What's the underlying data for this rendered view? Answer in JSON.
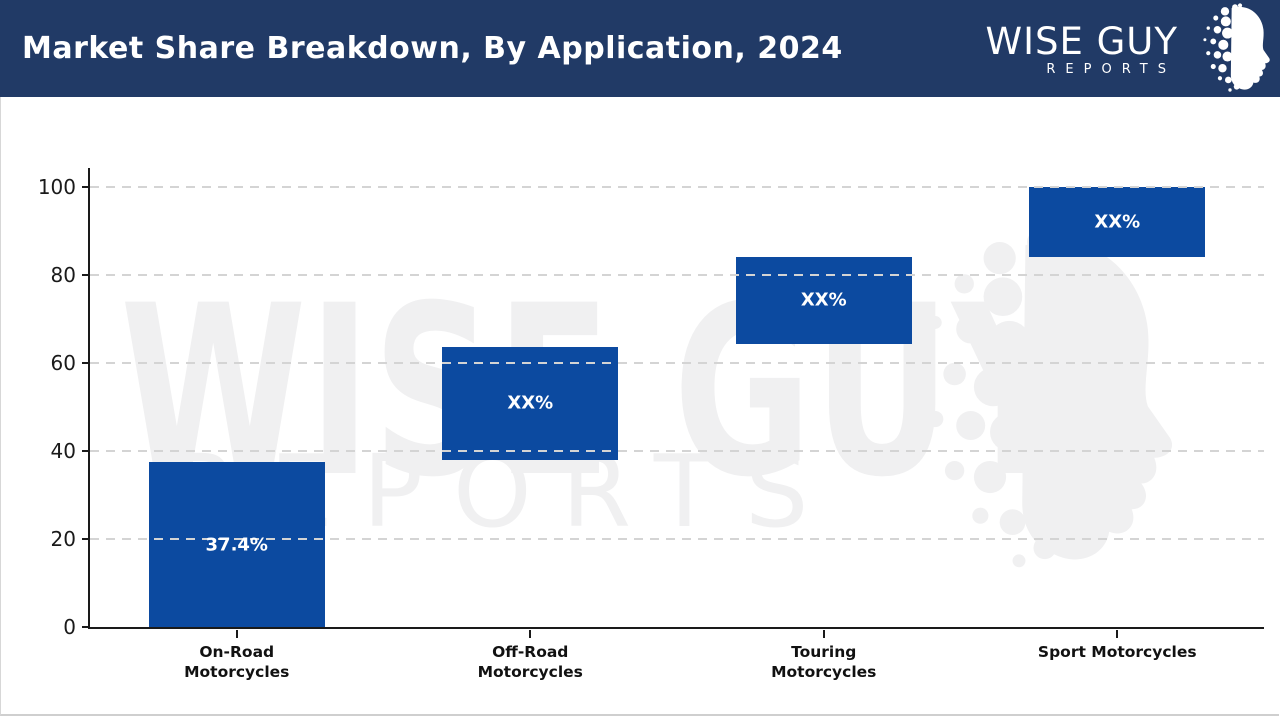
{
  "header": {
    "title": "Market Share Breakdown, By Application, 2024",
    "logo": {
      "line1": "WISE GUY",
      "line2": "REPORTS"
    }
  },
  "watermark": {
    "line1": "WISE GUY",
    "line2": "REPORTS"
  },
  "colors": {
    "header_bg": "#213a66",
    "bar": "#0c4aa0",
    "bar_label": "#ffffff",
    "grid": "#d4d4d4",
    "axis": "#1a1a1a",
    "watermark": "#f0f0f1"
  },
  "chart_data": {
    "type": "bar",
    "variant": "floating-waterfall",
    "title": "Market Share Breakdown, By Application, 2024",
    "categories": [
      "On-Road Motorcycles",
      "Off-Road Motorcycles",
      "Touring Motorcycles",
      "Sport Motorcycles"
    ],
    "category_label_lines": [
      [
        "On-Road",
        "Motorcycles"
      ],
      [
        "Off-Road",
        "Motorcycles"
      ],
      [
        "Touring",
        "Motorcycles"
      ],
      [
        "Sport Motorcycles"
      ]
    ],
    "segments": [
      {
        "category": "On-Road Motorcycles",
        "start": 0,
        "end": 37.4,
        "label": "37.4%"
      },
      {
        "category": "Off-Road Motorcycles",
        "start": 38,
        "end": 63.6,
        "label": "XX%"
      },
      {
        "category": "Touring Motorcycles",
        "start": 64.3,
        "end": 84.1,
        "label": "XX%"
      },
      {
        "category": "Sport Motorcycles",
        "start": 84,
        "end": 100,
        "label": "XX%"
      }
    ],
    "yticks": [
      0,
      20,
      40,
      60,
      80,
      100
    ],
    "ylim": [
      0,
      104.3
    ],
    "xlabel": "",
    "ylabel": "",
    "grid": {
      "style": "dashed",
      "over_bars": true
    },
    "legend": "none"
  }
}
